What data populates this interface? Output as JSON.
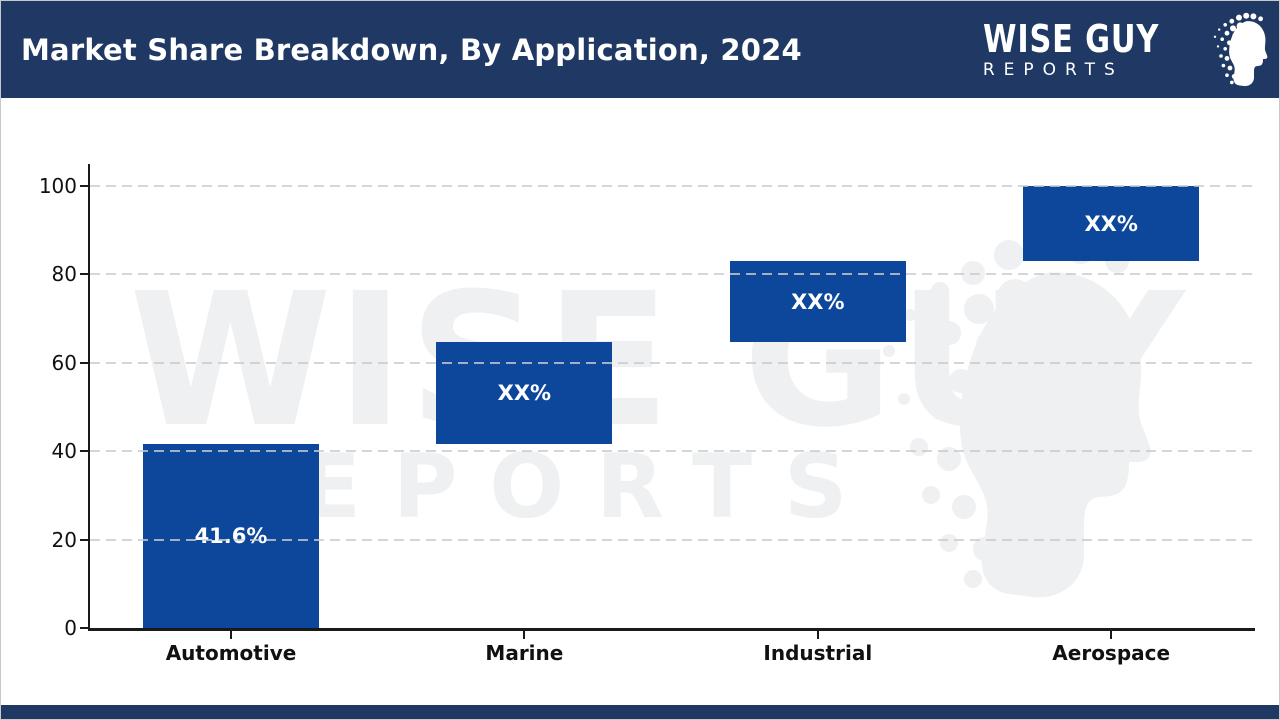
{
  "header": {
    "title": "Market Share Breakdown, By Application, 2024",
    "logo_line1": "WISE GUY",
    "logo_line2": "REPORTS",
    "bg_color": "#203864"
  },
  "watermark": {
    "line1": "WISE GUY",
    "line2": "REPORTS"
  },
  "chart_data": {
    "type": "bar",
    "subtype": "waterfall",
    "title": "Market Share Breakdown, By Application, 2024",
    "categories": [
      "Automotive",
      "Marine",
      "Industrial",
      "Aerospace"
    ],
    "segments": [
      {
        "category": "Automotive",
        "start": 0,
        "end": 41.6,
        "label": "41.6%"
      },
      {
        "category": "Marine",
        "start": 41.6,
        "end": 64.6,
        "label": "XX%"
      },
      {
        "category": "Industrial",
        "start": 64.6,
        "end": 83.0,
        "label": "XX%"
      },
      {
        "category": "Aerospace",
        "start": 83.0,
        "end": 100.0,
        "label": "XX%"
      }
    ],
    "yticks": [
      0,
      20,
      40,
      60,
      80,
      100
    ],
    "ylim": [
      0,
      105
    ],
    "xlabel": "",
    "ylabel": "",
    "legend": "none",
    "grid": "horizontal-dashed",
    "colors": {
      "bar": "#0c479c",
      "grid": "#cbcbcb",
      "axis": "#1a1a1a",
      "bar_label_text": "#ffffff",
      "tick_label_text": "#111111",
      "watermark": "#eef0f2"
    }
  },
  "footer": {
    "bg_color": "#203864"
  }
}
